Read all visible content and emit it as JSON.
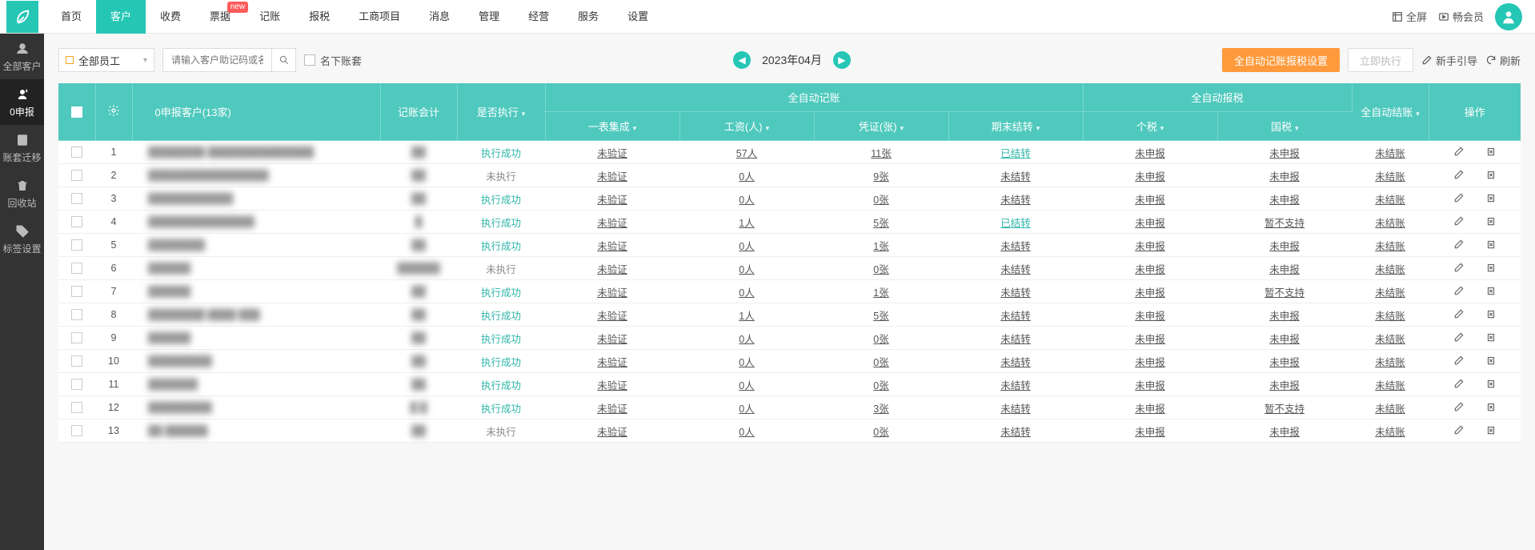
{
  "colors": {
    "primary": "#26c6b5",
    "tableHeader": "#4fc9bd",
    "accentOrange": "#ff9a3c",
    "sidebarBg": "#333333"
  },
  "topnav": {
    "items": [
      {
        "label": "首页"
      },
      {
        "label": "客户",
        "active": true
      },
      {
        "label": "收费"
      },
      {
        "label": "票据",
        "badge": "new"
      },
      {
        "label": "记账"
      },
      {
        "label": "报税"
      },
      {
        "label": "工商项目"
      },
      {
        "label": "消息"
      },
      {
        "label": "管理"
      },
      {
        "label": "经营"
      },
      {
        "label": "服务"
      },
      {
        "label": "设置"
      }
    ],
    "right": {
      "fullscreen": "全屏",
      "member": "畅会员"
    }
  },
  "sidebar": {
    "items": [
      {
        "label": "全部客户",
        "icon": "users"
      },
      {
        "label": "0申报",
        "icon": "declare",
        "active": true
      },
      {
        "label": "账套迁移",
        "icon": "transfer"
      },
      {
        "label": "回收站",
        "icon": "trash"
      },
      {
        "label": "标签设置",
        "icon": "tag"
      }
    ]
  },
  "toolbar": {
    "employeeSelect": "全部员工",
    "searchPlaceholder": "请输入客户助记码或名称",
    "subAccount": "名下账套",
    "period": "2023年04月",
    "autoSet": "全自动记账报税设置",
    "runNow": "立即执行",
    "guide": "新手引导",
    "refresh": "刷新"
  },
  "columns": {
    "customers": "0申报客户(13家)",
    "accountant": "记账会计",
    "exec": "是否执行",
    "groupAutoBook": "全自动记账",
    "oneTable": "一表集成",
    "salary": "工资(人)",
    "voucher": "凭证(张)",
    "period": "期末结转",
    "groupAutoTax": "全自动报税",
    "indTax": "个税",
    "natTax": "国税",
    "settle": "全自动结账",
    "op": "操作"
  },
  "statusText": {
    "execOk": "执行成功",
    "execNo": "未执行",
    "unverified": "未验证",
    "unDeclared": "未申报",
    "noSupport": "暂不支持",
    "unSettled": "未结账",
    "unTransfer": "未结转",
    "transferred": "已结转"
  },
  "rows": [
    {
      "idx": 1,
      "name": "████████ ███████████████",
      "acct": "██",
      "exec": "ok",
      "oneTable": "未验证",
      "salary": "57人",
      "voucher": "11张",
      "period": "已结转",
      "periodOk": true,
      "ind": "未申报",
      "nat": "未申报",
      "settle": "未结账"
    },
    {
      "idx": 2,
      "name": "█████████████████",
      "acct": "██",
      "exec": "no",
      "oneTable": "未验证",
      "salary": "0人",
      "voucher": "9张",
      "period": "未结转",
      "ind": "未申报",
      "nat": "未申报",
      "settle": "未结账"
    },
    {
      "idx": 3,
      "name": "████████████",
      "acct": "██",
      "exec": "ok",
      "oneTable": "未验证",
      "salary": "0人",
      "voucher": "0张",
      "period": "未结转",
      "ind": "未申报",
      "nat": "未申报",
      "settle": "未结账"
    },
    {
      "idx": 4,
      "name": "███████████████",
      "acct": "█",
      "exec": "ok",
      "oneTable": "未验证",
      "salary": "1人",
      "voucher": "5张",
      "period": "已结转",
      "periodOk": true,
      "ind": "未申报",
      "nat": "暂不支持",
      "settle": "未结账"
    },
    {
      "idx": 5,
      "name": "████████",
      "acct": "██",
      "exec": "ok",
      "oneTable": "未验证",
      "salary": "0人",
      "voucher": "1张",
      "period": "未结转",
      "ind": "未申报",
      "nat": "未申报",
      "settle": "未结账"
    },
    {
      "idx": 6,
      "name": "██████",
      "acct": "██████",
      "exec": "no",
      "oneTable": "未验证",
      "salary": "0人",
      "voucher": "0张",
      "period": "未结转",
      "ind": "未申报",
      "nat": "未申报",
      "settle": "未结账"
    },
    {
      "idx": 7,
      "name": "██████",
      "acct": "██",
      "exec": "ok",
      "oneTable": "未验证",
      "salary": "0人",
      "voucher": "1张",
      "period": "未结转",
      "ind": "未申报",
      "nat": "暂不支持",
      "settle": "未结账"
    },
    {
      "idx": 8,
      "name": "████████ ████ ███",
      "acct": "██",
      "exec": "ok",
      "oneTable": "未验证",
      "salary": "1人",
      "voucher": "5张",
      "period": "未结转",
      "ind": "未申报",
      "nat": "未申报",
      "settle": "未结账"
    },
    {
      "idx": 9,
      "name": "██████",
      "acct": "██",
      "exec": "ok",
      "oneTable": "未验证",
      "salary": "0人",
      "voucher": "0张",
      "period": "未结转",
      "ind": "未申报",
      "nat": "未申报",
      "settle": "未结账"
    },
    {
      "idx": 10,
      "name": "█████████",
      "acct": "██",
      "exec": "ok",
      "oneTable": "未验证",
      "salary": "0人",
      "voucher": "0张",
      "period": "未结转",
      "ind": "未申报",
      "nat": "未申报",
      "settle": "未结账"
    },
    {
      "idx": 11,
      "name": "███████",
      "acct": "██",
      "exec": "ok",
      "oneTable": "未验证",
      "salary": "0人",
      "voucher": "0张",
      "period": "未结转",
      "ind": "未申报",
      "nat": "未申报",
      "settle": "未结账"
    },
    {
      "idx": 12,
      "name": "█████████",
      "acct": "█ █",
      "exec": "ok",
      "oneTable": "未验证",
      "salary": "0人",
      "voucher": "3张",
      "period": "未结转",
      "ind": "未申报",
      "nat": "暂不支持",
      "settle": "未结账"
    },
    {
      "idx": 13,
      "name": "██ ██████",
      "acct": "██",
      "exec": "no",
      "oneTable": "未验证",
      "salary": "0人",
      "voucher": "0张",
      "period": "未结转",
      "ind": "未申报",
      "nat": "未申报",
      "settle": "未结账"
    }
  ]
}
